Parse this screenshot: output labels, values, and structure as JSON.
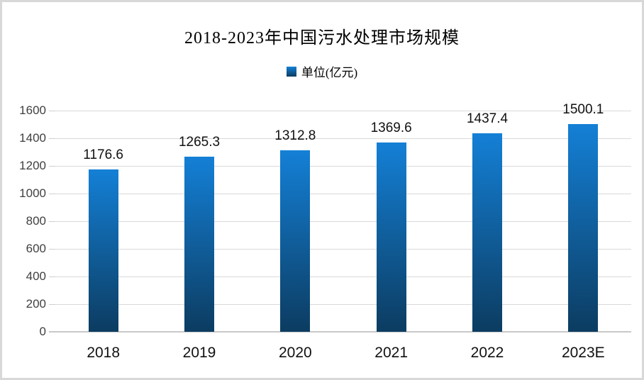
{
  "chart": {
    "title": "2018-2023年中国污水处理市场规模",
    "legend_label": "单位(亿元)"
  },
  "chart_data": {
    "type": "bar",
    "title": "2018-2023年中国污水处理市场规模",
    "legend": [
      "单位(亿元)"
    ],
    "legend_position": "top",
    "categories": [
      "2018",
      "2019",
      "2020",
      "2021",
      "2022",
      "2023E"
    ],
    "values": [
      1176.6,
      1265.3,
      1312.8,
      1369.6,
      1437.4,
      1500.1
    ],
    "data_labels": [
      "1176.6",
      "1265.3",
      "1312.8",
      "1369.6",
      "1437.4",
      "1500.1"
    ],
    "xlabel": "",
    "ylabel": "",
    "ylim": [
      0,
      1600
    ],
    "yticks": [
      0,
      200,
      400,
      600,
      800,
      1000,
      1200,
      1400,
      1600
    ],
    "grid": true,
    "colors": {
      "bar_gradient_top": "#1480d6",
      "bar_gradient_bottom": "#0c3c61",
      "gridline": "#d9d9d9",
      "y_tick_label": "#404040",
      "x_tick_label": "#111111",
      "data_label": "#111111",
      "title": "#000000",
      "frame_border": "#d8d8d8",
      "background": "#ffffff"
    }
  }
}
